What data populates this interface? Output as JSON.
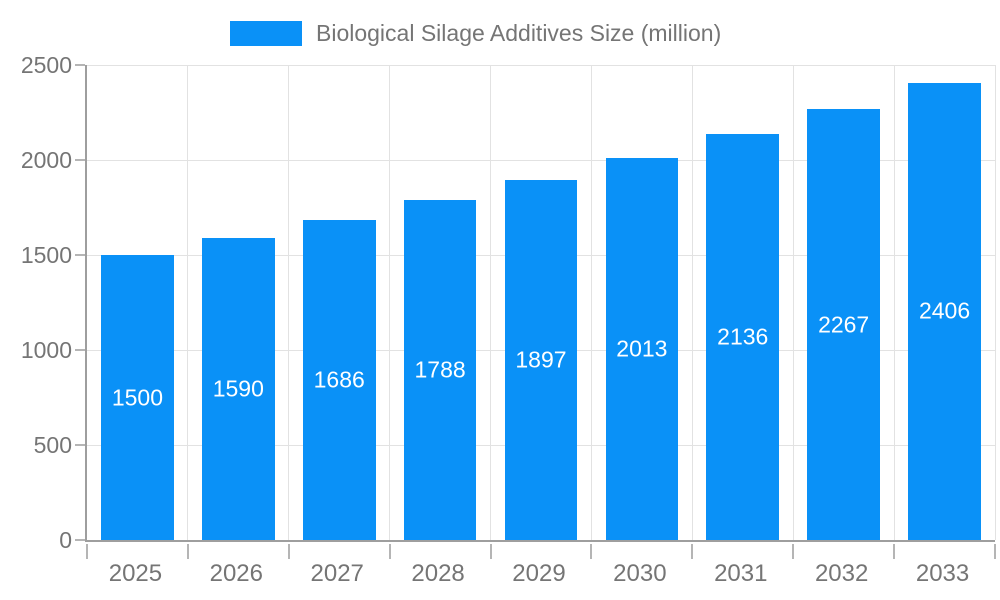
{
  "legend": {
    "series_label": "Biological Silage Additives Size (million)",
    "swatch_color": "#0a91f7"
  },
  "chart_data": {
    "type": "bar",
    "title": "",
    "series_name": "Biological Silage Additives Size (million)",
    "categories": [
      "2025",
      "2026",
      "2027",
      "2028",
      "2029",
      "2030",
      "2031",
      "2032",
      "2033"
    ],
    "values": [
      1500,
      1590,
      1686,
      1788,
      1897,
      2013,
      2136,
      2267,
      2406
    ],
    "xlabel": "",
    "ylabel": "",
    "ylim": [
      0,
      2500
    ],
    "yticks": [
      0,
      500,
      1000,
      1500,
      2000,
      2500
    ],
    "grid": true,
    "legend_position": "top",
    "value_label_position": "inside-center",
    "colors": {
      "bar": "#0a91f7",
      "grid": "#e2e2e2",
      "axis": "#9e9e9e",
      "tick": "#b5b5b5",
      "text": "#757575",
      "value_label": "#ffffff",
      "background": "#ffffff"
    }
  }
}
